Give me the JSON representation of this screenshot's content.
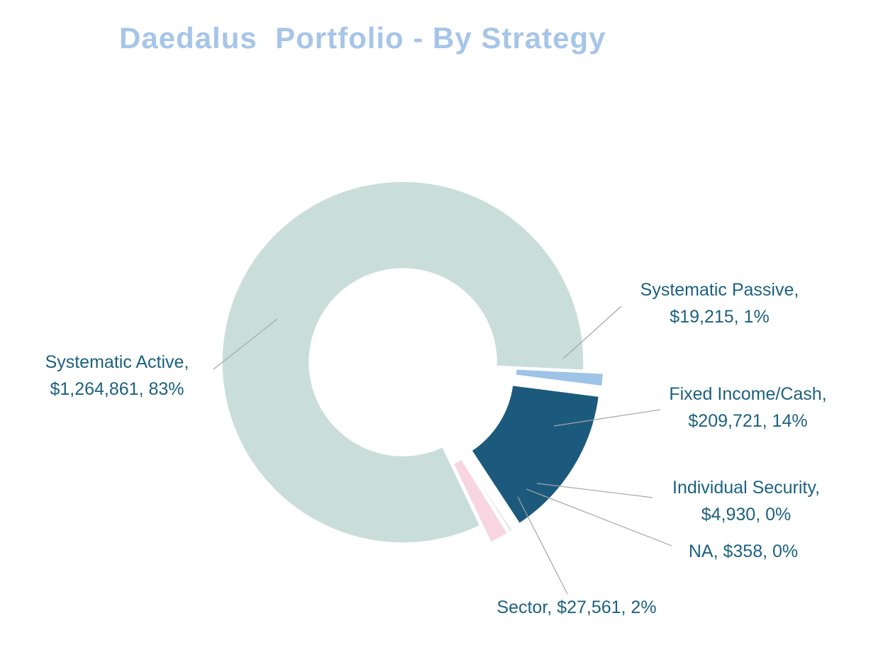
{
  "title": "Daedalus  Portfolio - By Strategy",
  "labels": {
    "systematic_active": {
      "line1": "Systematic Active,",
      "line2": "$1,264,861, 83%"
    },
    "systematic_passive": {
      "line1": "Systematic Passive,",
      "line2": "$19,215, 1%"
    },
    "fixed_income": {
      "line1": "Fixed Income/Cash,",
      "line2": "$209,721, 14%"
    },
    "individual_security": {
      "line1": "Individual Security,",
      "line2": "$4,930, 0%"
    },
    "na": {
      "line1": "NA, $358, 0%"
    },
    "sector": {
      "line1": "Sector, $27,561, 2%"
    }
  },
  "chart_data": {
    "type": "pie",
    "subtype": "donut",
    "title": "Daedalus  Portfolio - By Strategy",
    "legend_position": "callout-labels",
    "start_angle_deg": 154.5,
    "direction": "clockwise",
    "slices": [
      {
        "id": "systematic-active",
        "label": "Systematic Active",
        "value": 1264861,
        "display_value": "$1,264,861",
        "percent": "83%",
        "color": "#c9ded9",
        "exploded": false
      },
      {
        "id": "systematic-passive",
        "label": "Systematic Passive",
        "value": 19215,
        "display_value": "$19,215",
        "percent": "1%",
        "color": "#9dc3e6",
        "exploded": true
      },
      {
        "id": "fixed-income-cash",
        "label": "Fixed Income/Cash",
        "value": 209721,
        "display_value": "$209,721",
        "percent": "14%",
        "color": "#1c5a7d",
        "exploded": true
      },
      {
        "id": "individual-security",
        "label": "Individual Security",
        "value": 4930,
        "display_value": "$4,930",
        "percent": "0%",
        "color": "#d9d9d9",
        "exploded": true
      },
      {
        "id": "na",
        "label": "NA",
        "value": 358,
        "display_value": "$358",
        "percent": "0%",
        "color": "#bfbfbf",
        "exploded": true
      },
      {
        "id": "sector",
        "label": "Sector",
        "value": 27561,
        "display_value": "$27,561",
        "percent": "2%",
        "color": "#f7d6e2",
        "exploded": true
      }
    ]
  },
  "colors": {
    "title": "#a6c5e8",
    "label_text": "#1d6180",
    "leader_line": "#a6a6a6",
    "background": "#ffffff"
  }
}
